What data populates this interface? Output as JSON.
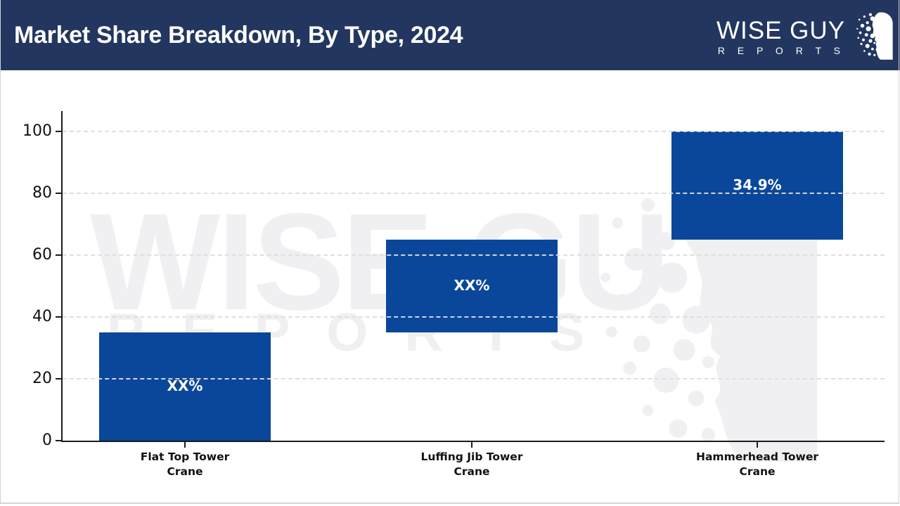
{
  "header": {
    "title": "Market Share Breakdown, By Type, 2024",
    "bg_color": "#22365f",
    "logo": {
      "line1": "WISE GUY",
      "line2": "R E P O R T S",
      "face_icon": "face-profile-dots-icon"
    }
  },
  "watermark": {
    "line1": "WISE GUY",
    "line2": "REPORTS",
    "face_icon": "face-profile-dots-icon",
    "color": "#f0f0f2"
  },
  "chart_data": {
    "type": "bar",
    "subtype": "floating-segment-waterfall",
    "title": "Market Share Breakdown, By Type, 2024",
    "xlabel": "",
    "ylabel": "",
    "categories": [
      [
        "Flat Top Tower",
        "Crane"
      ],
      [
        "Luffing Jib Tower",
        "Crane"
      ],
      [
        "Hammerhead Tower",
        "Crane"
      ]
    ],
    "bars": [
      {
        "category": "Flat Top Tower Crane",
        "start": 0,
        "end": 34.9,
        "label": "XX%"
      },
      {
        "category": "Luffing Jib Tower Crane",
        "start": 34.9,
        "end": 65.1,
        "label": "XX%"
      },
      {
        "category": "Hammerhead Tower Crane",
        "start": 65.1,
        "end": 100,
        "label": "34.9%"
      }
    ],
    "yticks": [
      0,
      20,
      40,
      60,
      80,
      100
    ],
    "ylim": [
      0,
      106
    ],
    "grid": "dashed-horizontal",
    "legend": "none",
    "bar_color": "#0a479a",
    "bar_label_color": "#ffffff",
    "axis_color": "#1c1c1c",
    "gridline_color": "#dddddd"
  }
}
